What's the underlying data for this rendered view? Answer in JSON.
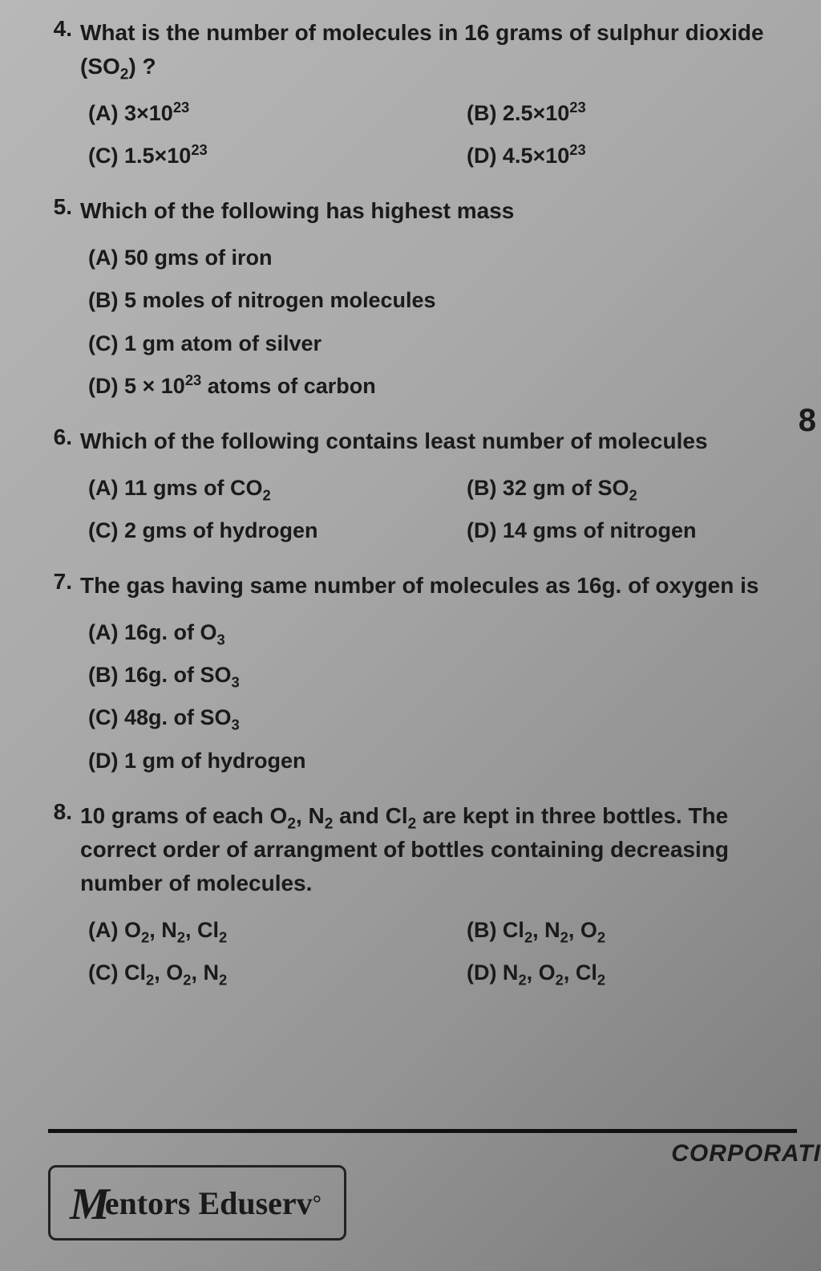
{
  "side_mark": "8",
  "questions": [
    {
      "num": "4.",
      "stem_html": "What is the number of molecules in 16 grams of sulphur dioxide (SO<sub>2</sub>) ?",
      "layout": "two-col",
      "opts": [
        {
          "label": "(A)",
          "html": "3×10<sup>23</sup>"
        },
        {
          "label": "(B)",
          "html": "2.5×10<sup>23</sup>"
        },
        {
          "label": "(C)",
          "html": "1.5×10<sup>23</sup>"
        },
        {
          "label": "(D)",
          "html": "4.5×10<sup>23</sup>"
        }
      ]
    },
    {
      "num": "5.",
      "stem_html": "Which of the following has highest mass",
      "layout": "one-col",
      "opts": [
        {
          "label": "(A)",
          "html": "50 gms of iron"
        },
        {
          "label": "(B)",
          "html": "5 moles of nitrogen molecules"
        },
        {
          "label": "(C)",
          "html": "1 gm atom of silver"
        },
        {
          "label": "(D)",
          "html": "5 × 10<sup>23</sup> atoms of carbon"
        }
      ]
    },
    {
      "num": "6.",
      "stem_html": "Which of the following contains least number of molecules",
      "layout": "two-col",
      "opts": [
        {
          "label": "(A)",
          "html": "11 gms of CO<sub>2</sub>"
        },
        {
          "label": "(B)",
          "html": "32 gm of SO<sub>2</sub>"
        },
        {
          "label": "(C)",
          "html": "2 gms of hydrogen"
        },
        {
          "label": "(D)",
          "html": "14 gms of nitrogen"
        }
      ]
    },
    {
      "num": "7.",
      "stem_html": "The gas having same number of molecules as 16g. of oxygen is",
      "layout": "one-col",
      "opts": [
        {
          "label": "(A)",
          "html": "16g. of O<sub>3</sub>"
        },
        {
          "label": "(B)",
          "html": "16g. of SO<sub>3</sub>"
        },
        {
          "label": "(C)",
          "html": "48g. of SO<sub>3</sub>"
        },
        {
          "label": "(D)",
          "html": "1 gm of hydrogen"
        }
      ]
    },
    {
      "num": "8.",
      "stem_html": "10 grams of each O<sub>2</sub>, N<sub>2</sub> and Cl<sub>2</sub> are kept in three bottles. The correct order of arrangment of bottles containing decreasing number of molecules.",
      "layout": "two-col",
      "opts": [
        {
          "label": "(A)",
          "html": "O<sub>2</sub>, N<sub>2</sub>, Cl<sub>2</sub>"
        },
        {
          "label": "(B)",
          "html": "Cl<sub>2</sub>, N<sub>2</sub>, O<sub>2</sub>"
        },
        {
          "label": "(C)",
          "html": "Cl<sub>2</sub>, O<sub>2</sub>, N<sub>2</sub>"
        },
        {
          "label": "(D)",
          "html": "N<sub>2</sub>, O<sub>2</sub>, Cl<sub>2</sub>"
        }
      ]
    }
  ],
  "footer": {
    "corp": "CORPORATI",
    "logo_prefix": "M",
    "logo_rest": "entors Eduserv",
    "degree": "°"
  }
}
